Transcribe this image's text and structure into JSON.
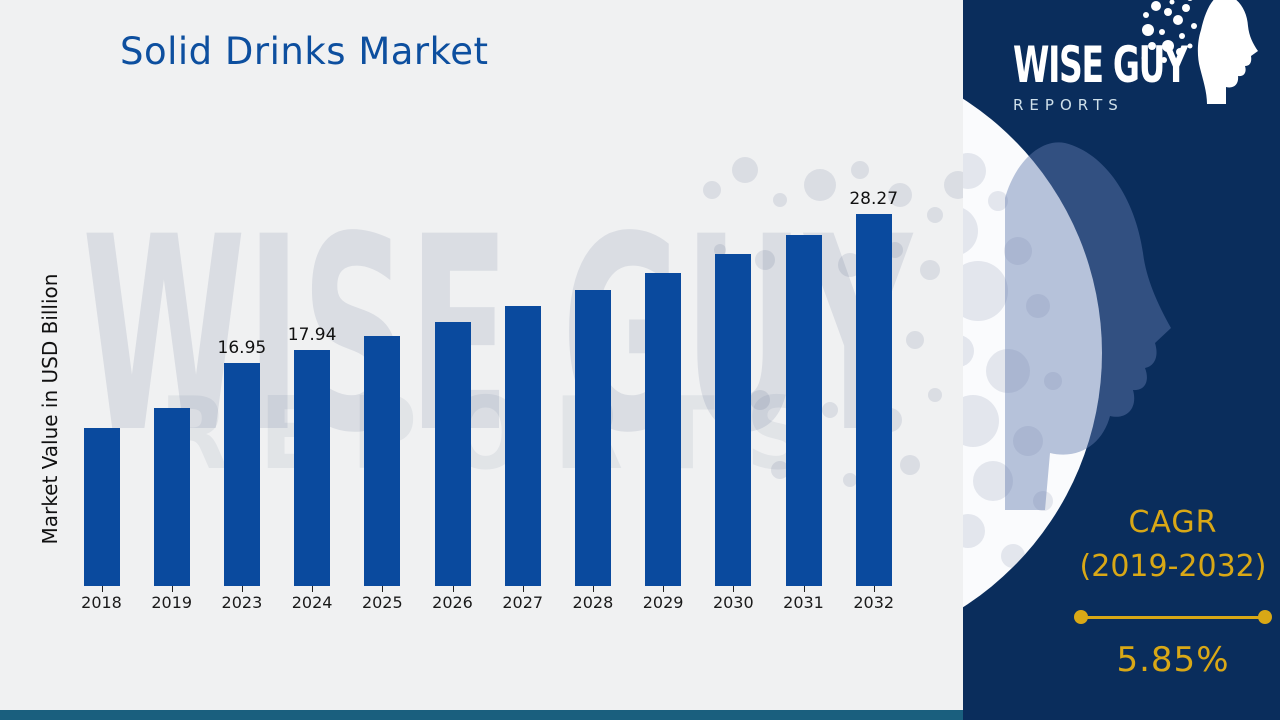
{
  "title": {
    "text": "Solid Drinks Market",
    "color": "#0d4f9f"
  },
  "brand": {
    "logo_line1": "WISE GUY",
    "logo_line2": "REPORTS",
    "watermark_line1": "WISE GUY",
    "watermark_line2": "R E P O R T S",
    "panel_color": "#0a2d5c",
    "strip_color": "#1a5f7e"
  },
  "cagr": {
    "label": "CAGR",
    "range": "(2019-2032)",
    "value": "5.85%",
    "color": "#d9a816"
  },
  "chart_data": {
    "type": "bar",
    "title": "Solid Drinks Market",
    "ylabel": "Market Value in USD Billion",
    "xlabel": "",
    "categories": [
      "2018",
      "2019",
      "2023",
      "2024",
      "2025",
      "2026",
      "2027",
      "2028",
      "2029",
      "2030",
      "2031",
      "2032"
    ],
    "values": [
      12.0,
      13.5,
      16.95,
      17.94,
      19.0,
      20.1,
      21.27,
      22.52,
      23.84,
      25.23,
      26.71,
      28.27
    ],
    "bar_labels": [
      "",
      "",
      "16.95",
      "17.94",
      "",
      "",
      "",
      "",
      "",
      "",
      "",
      "28.27"
    ],
    "bar_color": "#0a4a9e",
    "unit": "USD Billion",
    "ylim": [
      0,
      30
    ],
    "grid": false,
    "legend": "none"
  }
}
